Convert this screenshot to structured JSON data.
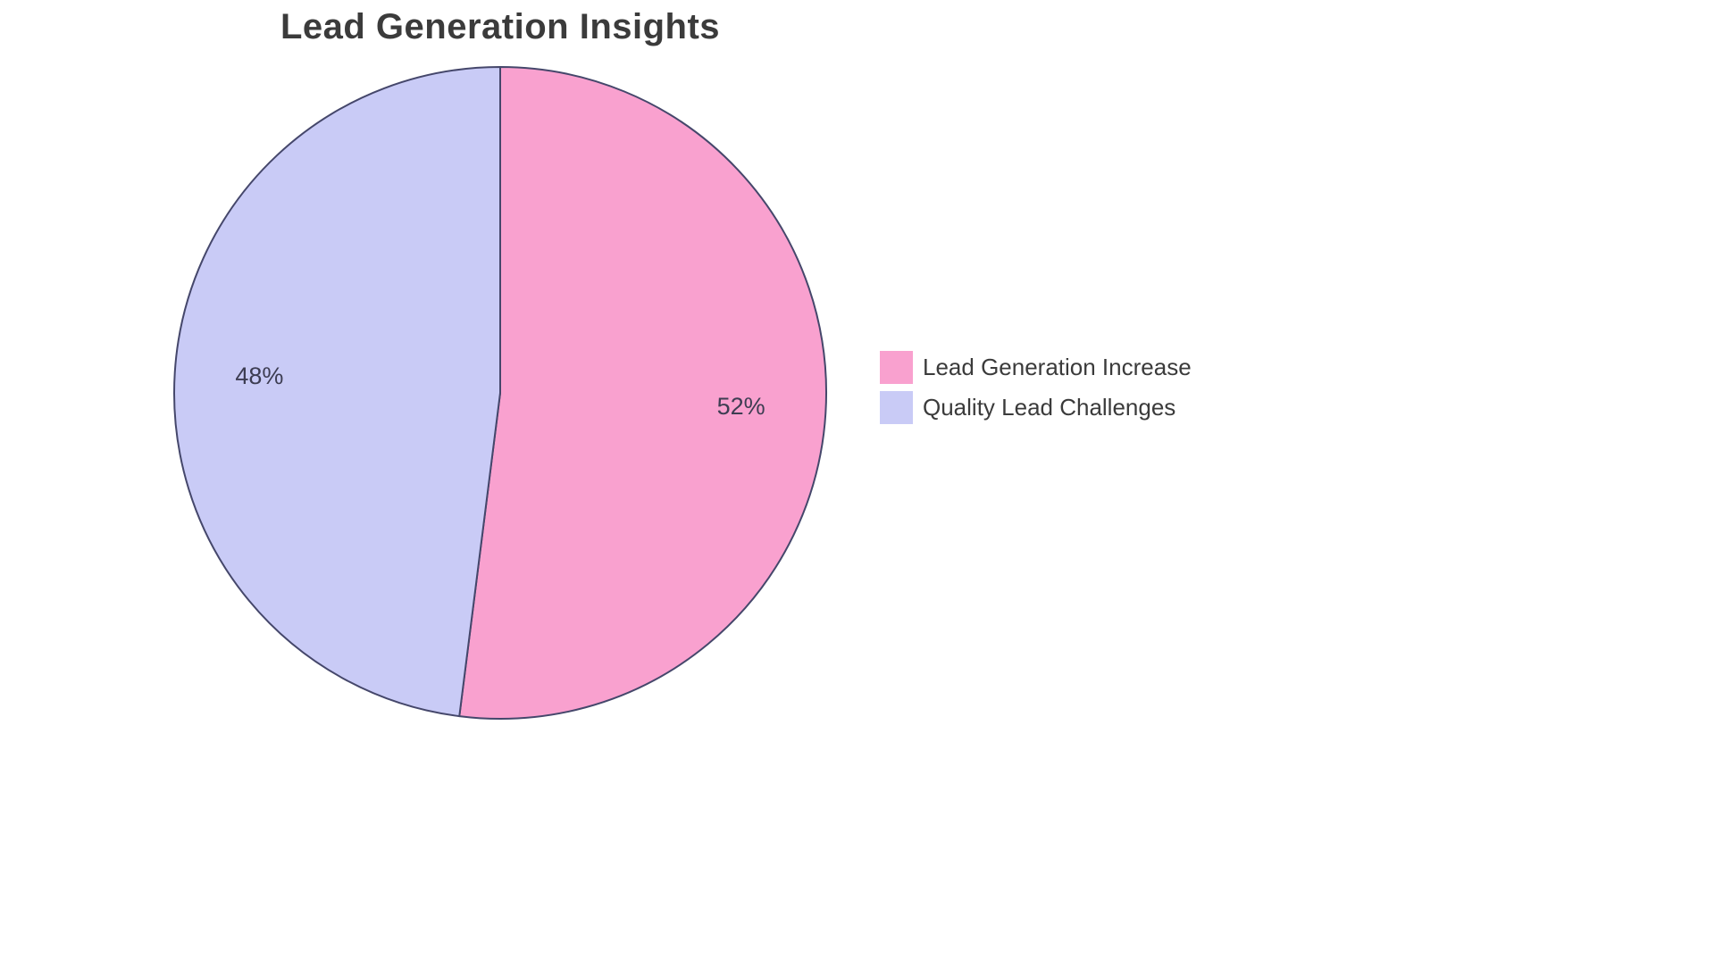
{
  "chart_data": {
    "type": "pie",
    "title": "Lead Generation Insights",
    "slices": [
      {
        "label": "Lead Generation Increase",
        "value": 52,
        "display": "52%",
        "color": "#F9A1CF"
      },
      {
        "label": "Quality Lead Challenges",
        "value": 48,
        "display": "48%",
        "color": "#C9CBF6"
      }
    ],
    "start_angle_deg": 0,
    "direction": "clockwise",
    "stroke_color": "#45476B",
    "stroke_width": 2,
    "label_radius_fraction": 0.74,
    "legend_position": "right",
    "background": "#FFFFFF"
  }
}
